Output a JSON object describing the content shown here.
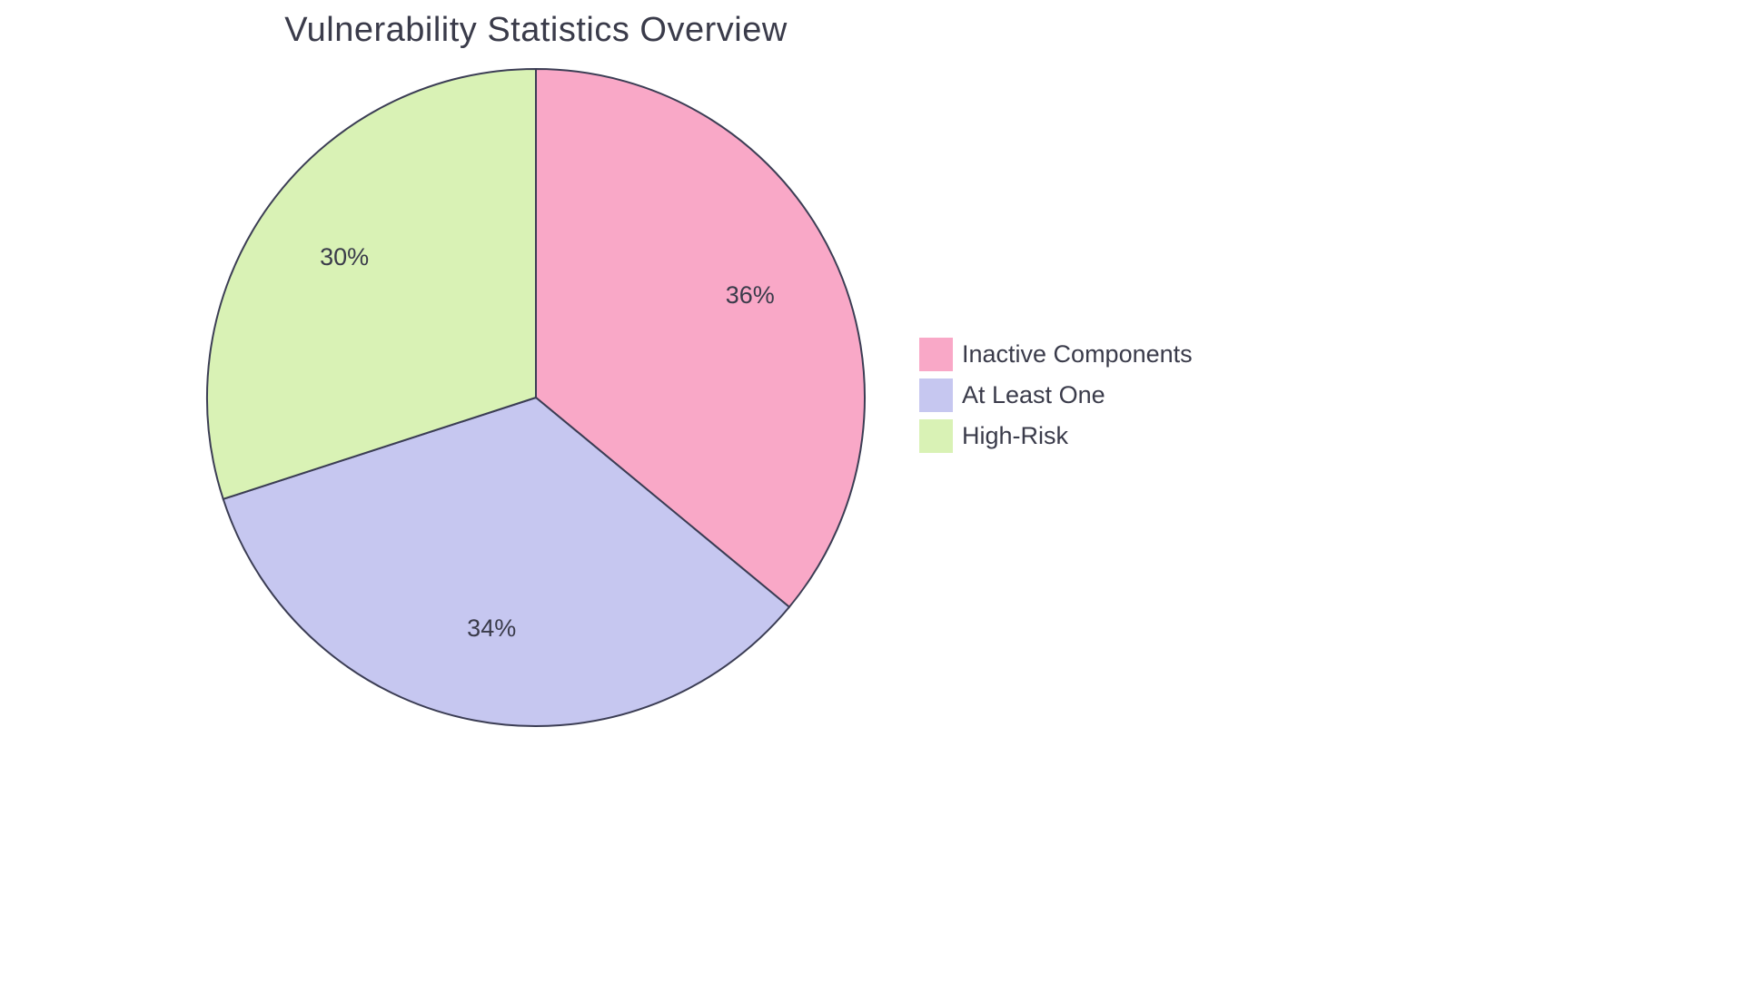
{
  "chart_data": {
    "type": "pie",
    "title": "Vulnerability Statistics Overview",
    "labels": [
      "Inactive Components",
      "At Least One",
      "High-Risk"
    ],
    "values": [
      36,
      34,
      30
    ],
    "value_labels": [
      "36%",
      "34%",
      "30%"
    ],
    "colors": [
      "#F9A8C7",
      "#C6C7F0",
      "#D9F2B5"
    ],
    "stroke_color": "#3B3D54",
    "text_color": "#3A3B4A",
    "legend_position": "right",
    "start_angle_deg": -90,
    "direction": "clockwise",
    "grid": false
  }
}
